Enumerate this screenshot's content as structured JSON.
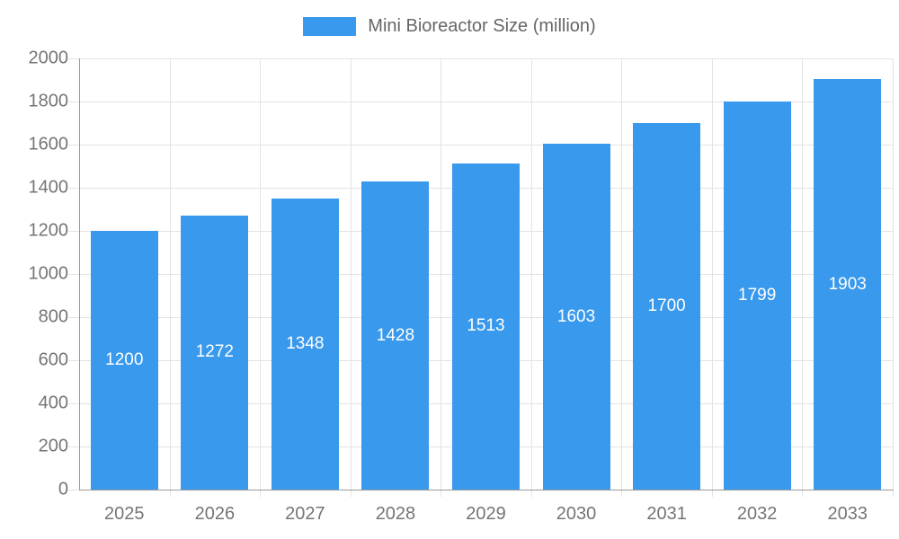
{
  "chart_data": {
    "type": "bar",
    "title": "Mini Bioreactor Size (million)",
    "categories": [
      "2025",
      "2026",
      "2027",
      "2028",
      "2029",
      "2030",
      "2031",
      "2032",
      "2033"
    ],
    "values": [
      1200,
      1272,
      1348,
      1428,
      1513,
      1603,
      1700,
      1799,
      1903
    ],
    "xlabel": "",
    "ylabel": "",
    "ylim": [
      0,
      2000
    ],
    "ytick_step": 200,
    "grid": true,
    "legend_position": "top",
    "value_labels": "inside-center"
  },
  "colors": {
    "bar_fill": "#3999EC",
    "value_label": "#ffffff",
    "grid": "#e3e3e3",
    "axis": "#9a9a9a",
    "tick_text": "#757575",
    "legend_text": "#666666",
    "background": "#ffffff"
  }
}
